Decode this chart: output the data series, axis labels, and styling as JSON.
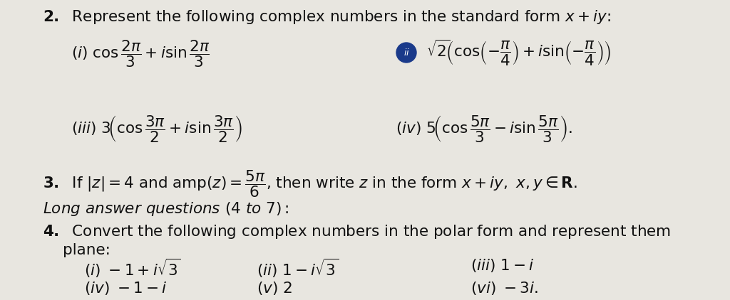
{
  "bg_color": "#e8e6e0",
  "text_color": "#111111",
  "circle_color": "#1a3a8a",
  "figsize": [
    10.24,
    4.22
  ],
  "dpi": 100
}
